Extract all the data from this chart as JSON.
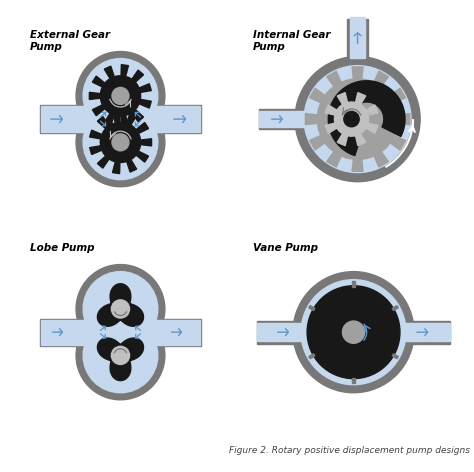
{
  "title": "Figure 2. Rotary positive displacement pump designs",
  "labels": {
    "top_left": "External Gear\nPump",
    "top_right": "Internal Gear\nPump",
    "bot_left": "Lobe Pump",
    "bot_right": "Vane Pump"
  },
  "colors": {
    "gray_dark": "#787878",
    "gray_medium": "#a0a0a0",
    "gray_light": "#c0c0c0",
    "blue_light": "#c5d8ed",
    "black": "#181818",
    "white": "#ffffff",
    "background": "#ffffff",
    "arrow_blue": "#6096c8",
    "arrow_white": "#ffffff"
  }
}
